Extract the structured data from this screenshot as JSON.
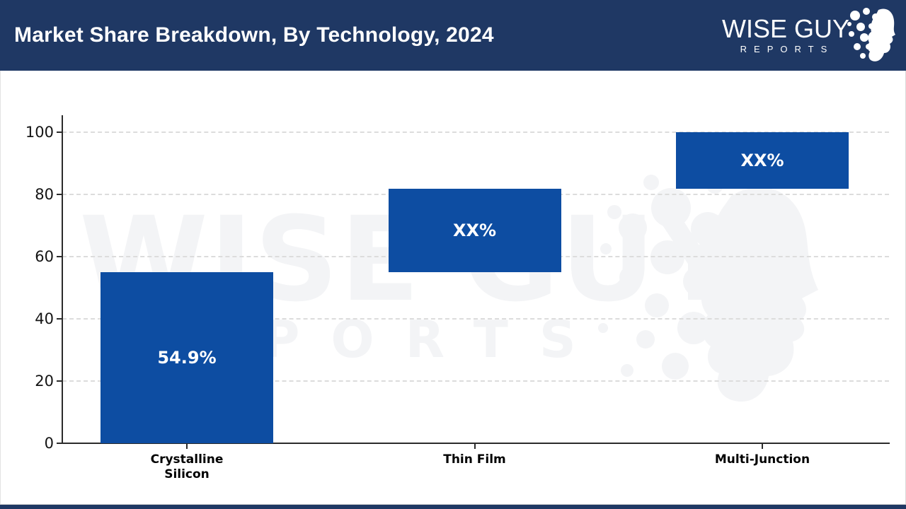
{
  "header": {
    "title": "Market Share Breakdown, By Technology, 2024",
    "logo": {
      "name": "WISE GUY",
      "subtitle": "REPORTS"
    }
  },
  "watermark": {
    "line1": "WISE GUY",
    "line2": "REPORTS"
  },
  "colors": {
    "header_bg": "#1f3864",
    "bar": "#0d4da2",
    "grid": "#dcdcdc",
    "axis": "#2b2b2b",
    "bar_label_text": "#ffffff",
    "tick_text": "#141414",
    "watermark": "#f3f4f6"
  },
  "chart_data": {
    "type": "bar",
    "subtype": "waterfall",
    "title": "Market Share Breakdown, By Technology, 2024",
    "categories": [
      "Crystalline\nSilicon",
      "Thin Film",
      "Multi-Junction"
    ],
    "segments": [
      {
        "category": "Crystalline Silicon",
        "start": 0,
        "end": 55,
        "value_label": "54.9%"
      },
      {
        "category": "Thin Film",
        "start": 55,
        "end": 81.8,
        "value_label": "XX%"
      },
      {
        "category": "Multi-Junction",
        "start": 81.8,
        "end": 100,
        "value_label": "XX%"
      }
    ],
    "ylim": [
      0,
      100
    ],
    "yticks": [
      0,
      20,
      40,
      60,
      80,
      100
    ],
    "grid": "horizontal-dashed",
    "legend": "none"
  }
}
